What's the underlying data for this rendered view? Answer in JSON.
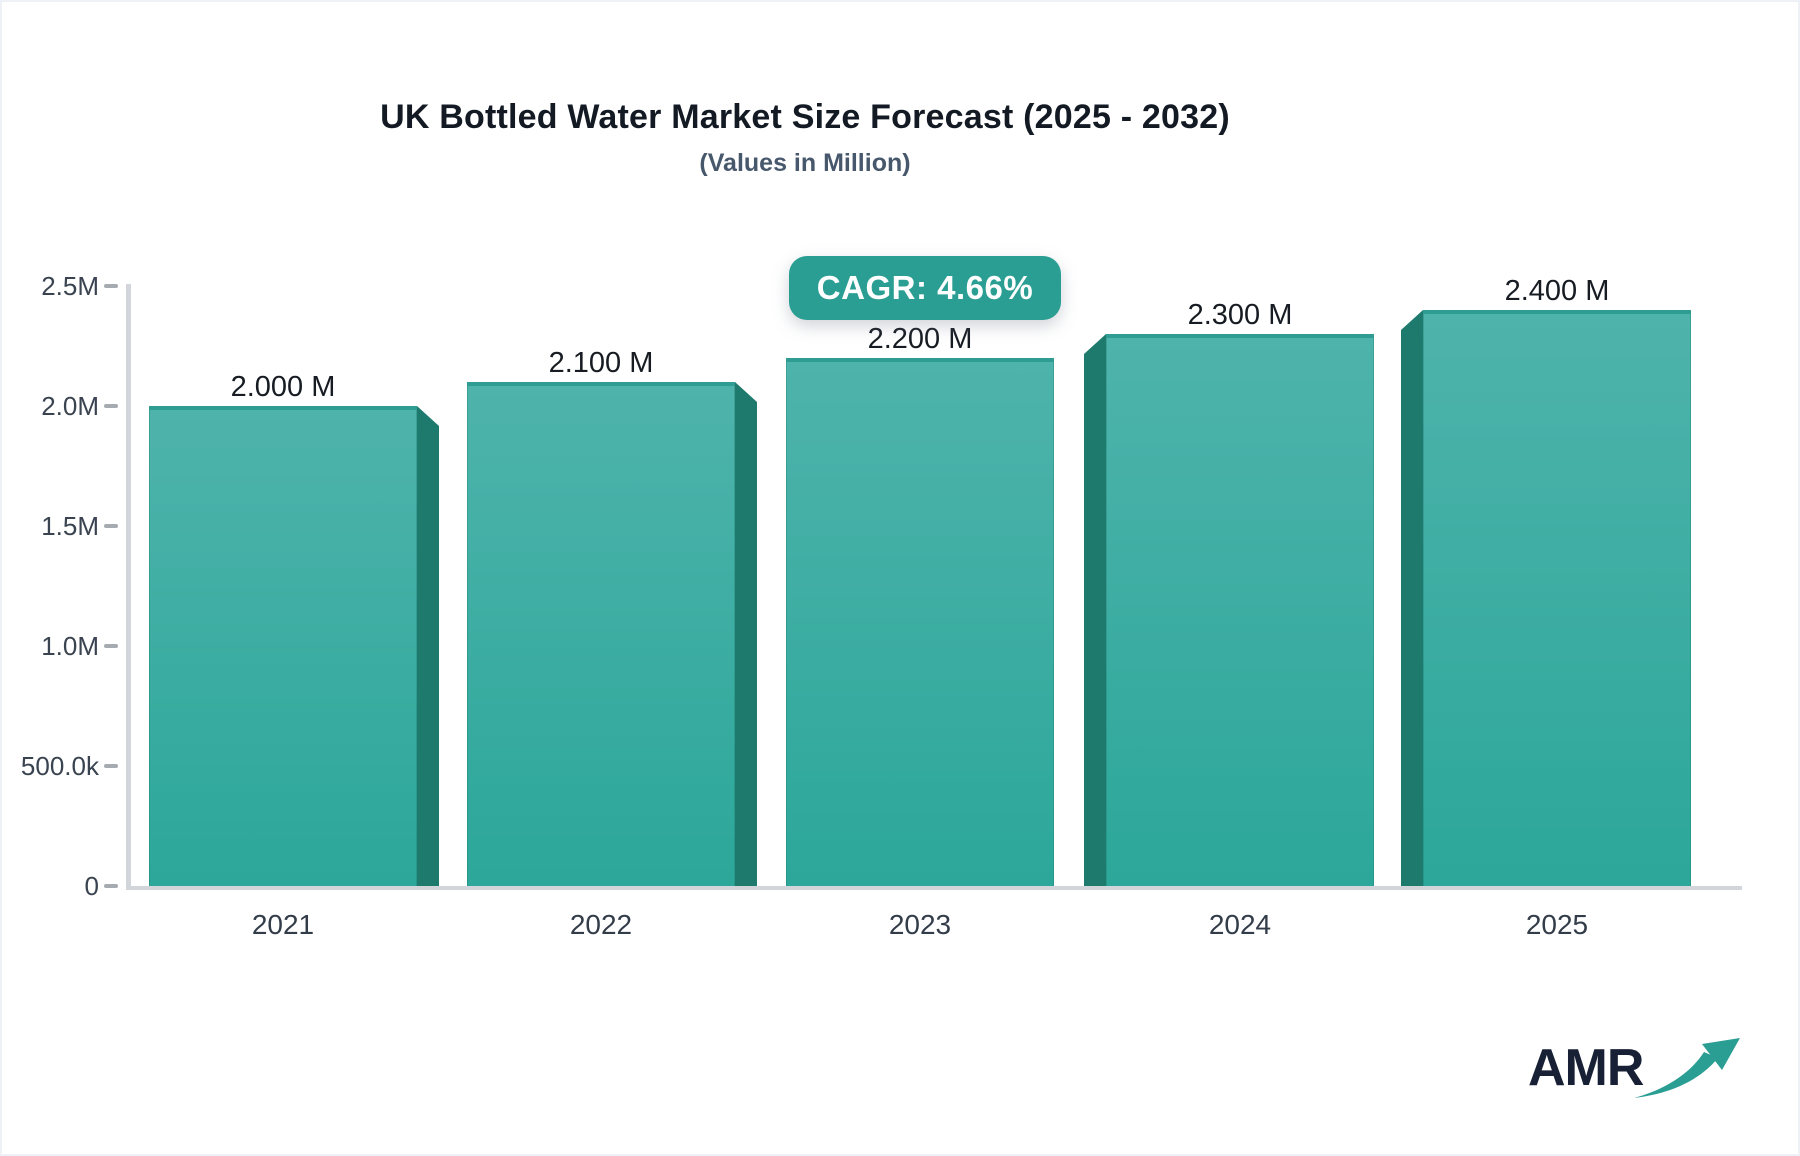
{
  "header": {
    "title": "UK Bottled Water Market Size Forecast (2025 - 2032)",
    "subtitle": "(Values in Million)"
  },
  "badge": {
    "label": "CAGR: 4.66%"
  },
  "logo": {
    "text": "AMR"
  },
  "chart_data": {
    "type": "bar",
    "title": "UK Bottled Water Market Size Forecast (2025 - 2032)",
    "subtitle": "(Values in Million)",
    "annotation": "CAGR: 4.66%",
    "categories": [
      "2021",
      "2022",
      "2023",
      "2024",
      "2025"
    ],
    "values": [
      2000000,
      2100000,
      2200000,
      2300000,
      2400000
    ],
    "bar_labels": [
      "2.000 M",
      "2.100 M",
      "2.200 M",
      "2.300 M",
      "2.400 M"
    ],
    "xlabel": "",
    "ylabel": "",
    "ylim": [
      0,
      2500000
    ],
    "yticks": [
      {
        "value": 0,
        "label": "0"
      },
      {
        "value": 500000,
        "label": "500.0k"
      },
      {
        "value": 1000000,
        "label": "1.0M"
      },
      {
        "value": 1500000,
        "label": "1.5M"
      },
      {
        "value": 2000000,
        "label": "2.0M"
      },
      {
        "value": 2500000,
        "label": "2.5M"
      }
    ],
    "grid": "off",
    "legend": "none",
    "style": "3d-bars, perspective toward center"
  },
  "colors": {
    "bar_face_top": "#4eb3ab",
    "bar_face_bottom": "#2ca79a",
    "bar_face_edge": "#2f9d93",
    "bar_side": "#1f7a6e",
    "badge_bg": "#2a9e93",
    "badge_text": "#ffffff",
    "axis_line": "#d2d6db",
    "tick_mark": "#a6abb2",
    "title_text": "#131a24",
    "subtitle_text": "#47586c",
    "tick_label": "#3a4450",
    "logo_navy": "#172035",
    "logo_teal": "#2a9e93"
  }
}
